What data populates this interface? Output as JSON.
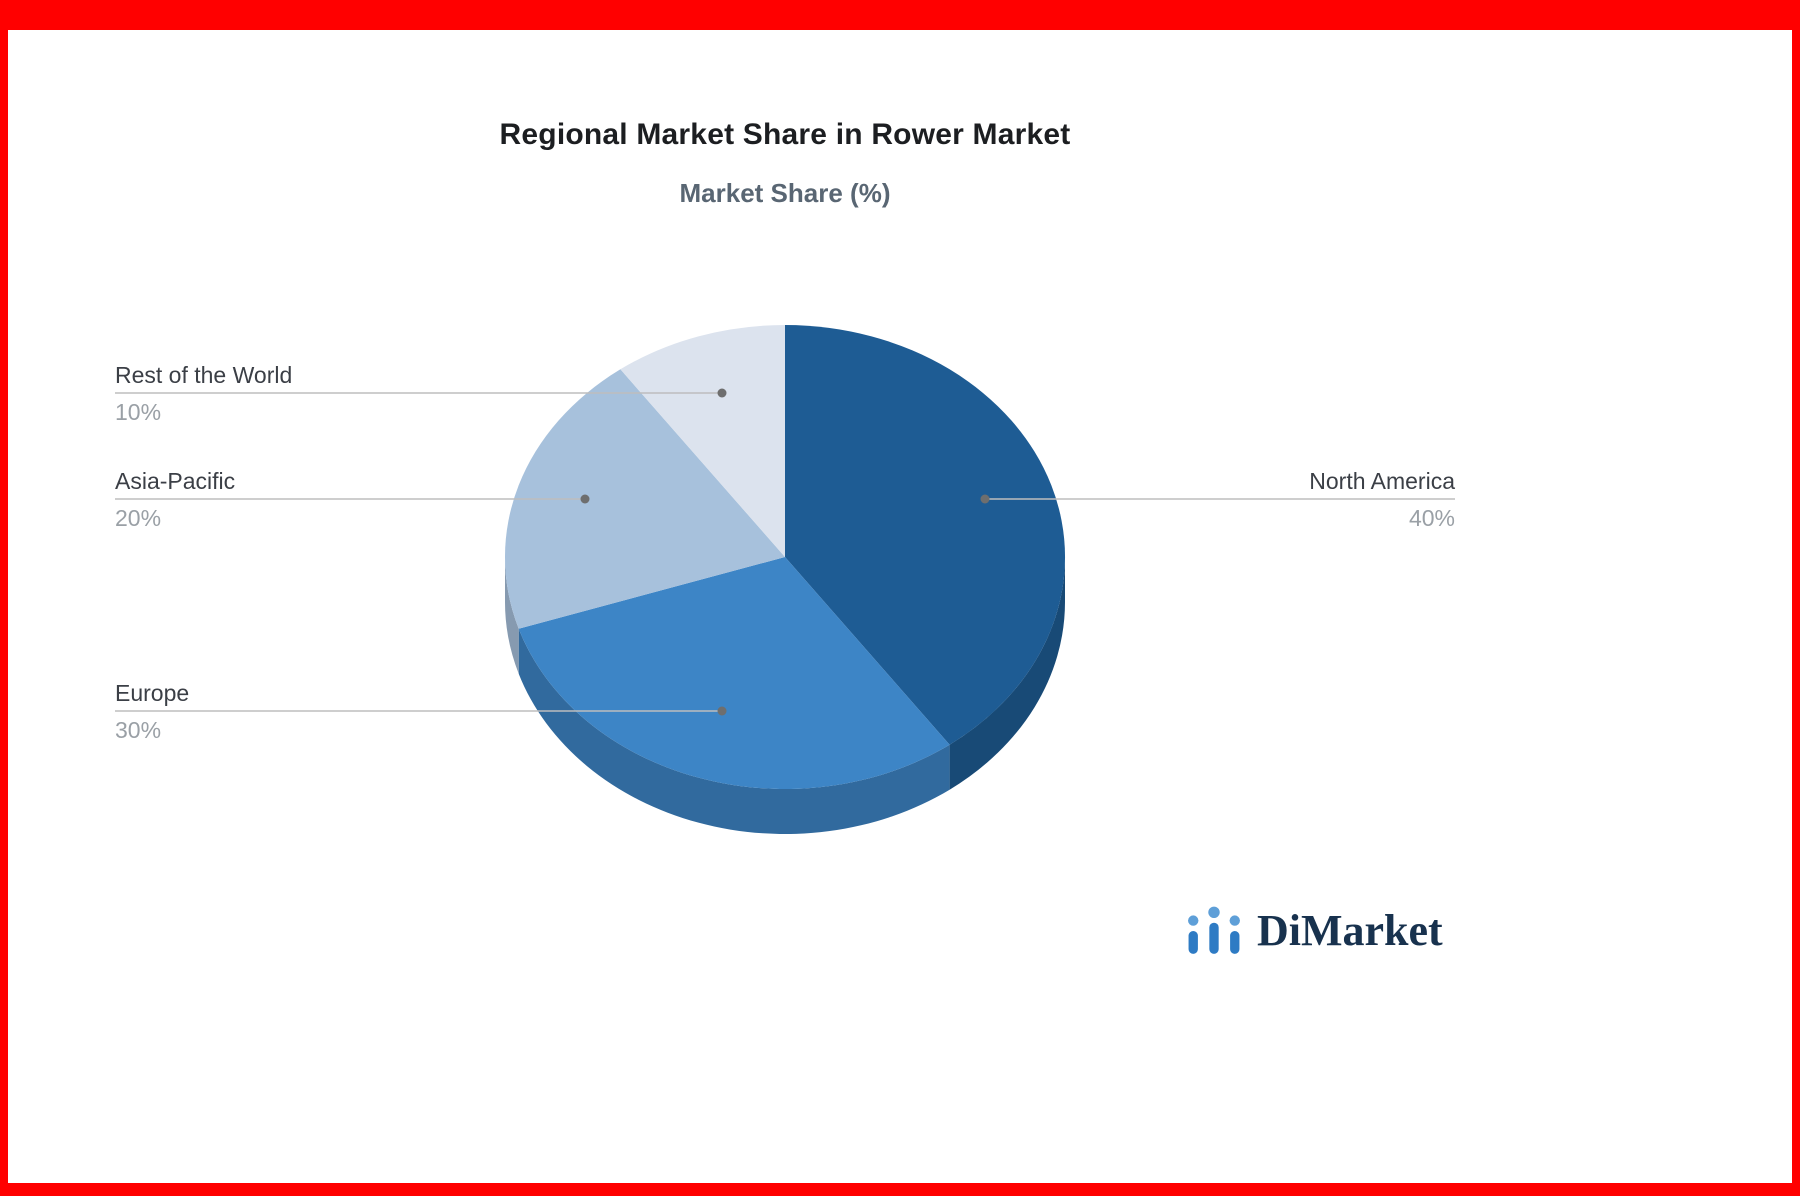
{
  "title": "Regional Market Share in Rower Market",
  "subtitle": "Market Share (%)",
  "chart_data": {
    "type": "pie",
    "style": "3d",
    "title": "Regional Market Share in Rower Market",
    "subtitle": "Market Share (%)",
    "unit": "%",
    "direction": "clockwise",
    "start_angle_deg": 0,
    "label_style": "callout",
    "slices": [
      {
        "label": "North America",
        "value": 40,
        "display": "40%",
        "color": "#1e5c94"
      },
      {
        "label": "Europe",
        "value": 30,
        "display": "30%",
        "color": "#3d85c6"
      },
      {
        "label": "Asia-Pacific",
        "value": 20,
        "display": "20%",
        "color": "#a7c1dc"
      },
      {
        "label": "Rest of the World",
        "value": 10,
        "display": "10%",
        "color": "#dce3ee"
      }
    ]
  },
  "callouts": {
    "rest_of_world": {
      "name": "Rest of the World",
      "pct": "10%"
    },
    "asia_pacific": {
      "name": "Asia-Pacific",
      "pct": "20%"
    },
    "europe": {
      "name": "Europe",
      "pct": "30%"
    },
    "north_america": {
      "name": "North America",
      "pct": "40%"
    }
  },
  "branding": {
    "logo_text": "DiMarket",
    "logo_icon": "bar-chart-icon"
  },
  "frame_color": "#ff0000"
}
